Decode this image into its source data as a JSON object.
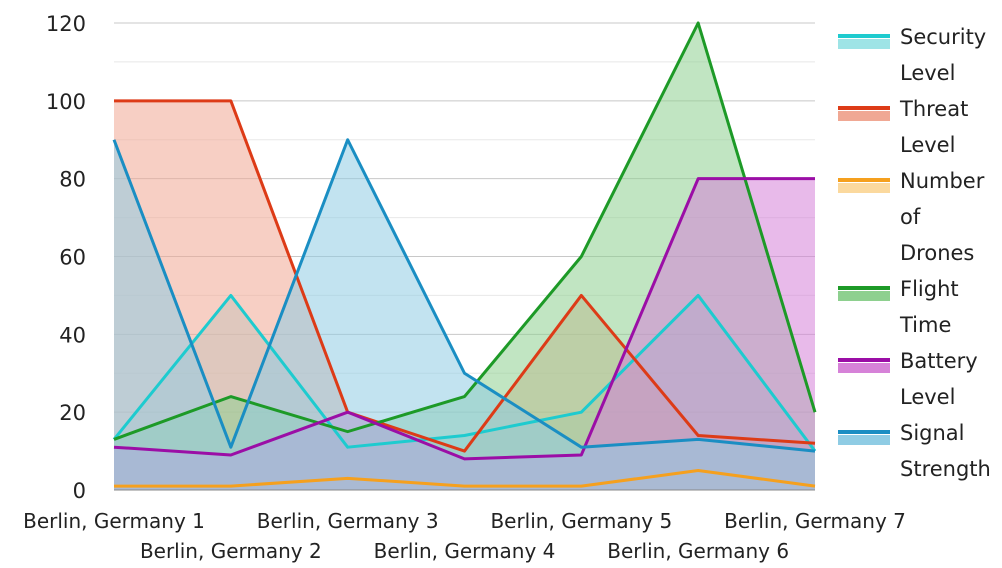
{
  "chart_data": {
    "type": "area",
    "categories": [
      "Berlin, Germany 1",
      "Berlin, Germany 2",
      "Berlin, Germany 3",
      "Berlin, Germany 4",
      "Berlin, Germany 5",
      "Berlin, Germany 6",
      "Berlin, Germany 7"
    ],
    "ylim": [
      0,
      120
    ],
    "yticks": [
      0,
      20,
      40,
      60,
      80,
      100,
      120
    ],
    "grid": true,
    "legend_position": "right",
    "series": [
      {
        "name": "Security Level",
        "legend_lines": [
          "Security",
          "Level"
        ],
        "color": "#1ecbcf",
        "fill": "#9ee4e6",
        "values": [
          13,
          50,
          11,
          14,
          20,
          50,
          10
        ]
      },
      {
        "name": "Threat Level",
        "legend_lines": [
          "Threat",
          "Level"
        ],
        "color": "#dd3b17",
        "fill": "#f0a894",
        "values": [
          100,
          100,
          20,
          10,
          50,
          14,
          12
        ]
      },
      {
        "name": "Number of Drones",
        "legend_lines": [
          "Number",
          "of",
          "Drones"
        ],
        "color": "#f5a01e",
        "fill": "#fbd99e",
        "values": [
          1,
          1,
          3,
          1,
          1,
          5,
          1
        ]
      },
      {
        "name": "Flight Time",
        "legend_lines": [
          "Flight",
          "Time"
        ],
        "color": "#1d9a27",
        "fill": "#8ed08f",
        "values": [
          13,
          24,
          15,
          24,
          60,
          120,
          20
        ]
      },
      {
        "name": "Battery Level",
        "legend_lines": [
          "Battery",
          "Level"
        ],
        "color": "#9b0ea6",
        "fill": "#d682d8",
        "values": [
          11,
          9,
          20,
          8,
          9,
          80,
          80
        ]
      },
      {
        "name": "Signal Strength",
        "legend_lines": [
          "Signal",
          "Strength"
        ],
        "color": "#1a8ec3",
        "fill": "#8fcce4",
        "values": [
          90,
          11,
          90,
          30,
          11,
          13,
          10
        ]
      }
    ]
  }
}
